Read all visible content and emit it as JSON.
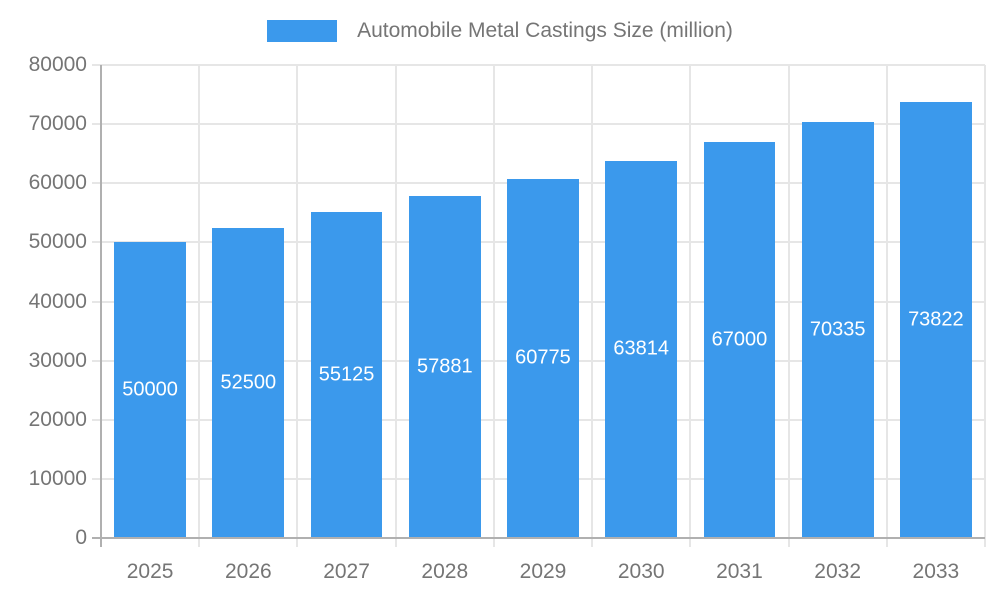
{
  "chart_data": {
    "type": "bar",
    "title": "Automobile Metal Castings Size (million)",
    "legend_position": "top",
    "categories": [
      "2025",
      "2026",
      "2027",
      "2028",
      "2029",
      "2030",
      "2031",
      "2032",
      "2033"
    ],
    "values": [
      50000,
      52500,
      55125,
      57881,
      60775,
      63814,
      67000,
      70335,
      73822
    ],
    "series": [
      {
        "name": "Automobile Metal Castings Size (million)",
        "values": [
          50000,
          52500,
          55125,
          57881,
          60775,
          63814,
          67000,
          70335,
          73822
        ]
      }
    ],
    "xlabel": "",
    "ylabel": "",
    "ylim": [
      0,
      80000
    ],
    "ytick_step": 10000,
    "ytick_labels": [
      "0",
      "10000",
      "20000",
      "30000",
      "40000",
      "50000",
      "60000",
      "70000",
      "80000"
    ],
    "grid": true,
    "value_label_position": "inside-center"
  },
  "colors": {
    "bar": "#3b99ec",
    "axis": "#b0b0b0",
    "grid": "#e6e6e6",
    "tick_text": "#757575",
    "legend_text": "#757575",
    "value_label": "#ffffff",
    "background": "#ffffff"
  }
}
